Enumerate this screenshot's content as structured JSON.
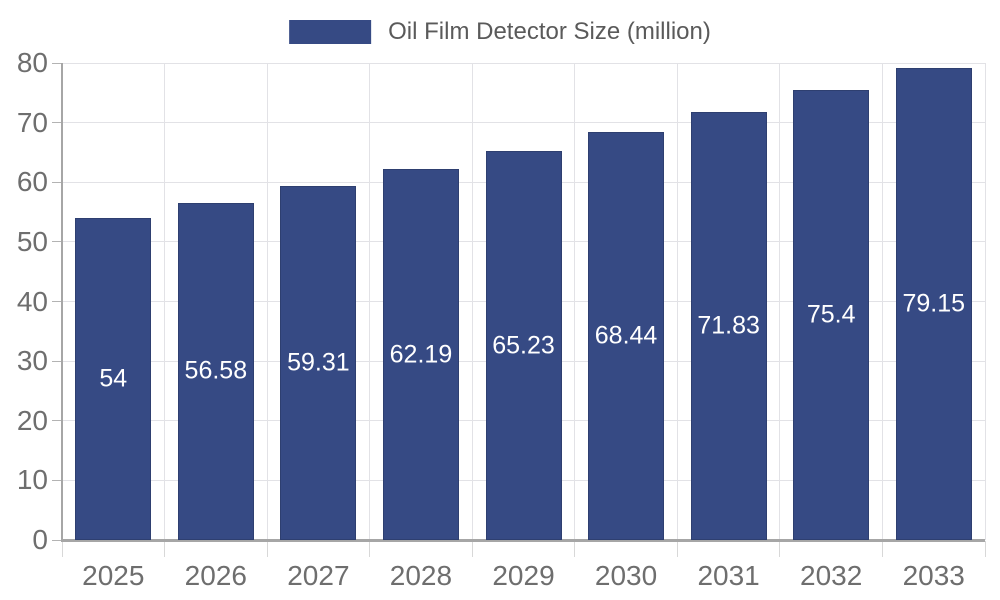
{
  "chart_data": {
    "type": "bar",
    "title": "Oil Film Detector Size (million)",
    "legend_position": "top",
    "categories": [
      "2025",
      "2026",
      "2027",
      "2028",
      "2029",
      "2030",
      "2031",
      "2032",
      "2033"
    ],
    "series": [
      {
        "name": "Oil Film Detector Size (million)",
        "values": [
          54,
          56.58,
          59.31,
          62.19,
          65.23,
          68.44,
          71.83,
          75.4,
          79.15
        ]
      }
    ],
    "data_labels": [
      "54",
      "56.58",
      "59.31",
      "62.19",
      "65.23",
      "68.44",
      "71.83",
      "75.4",
      "79.15"
    ],
    "xlabel": "",
    "ylabel": "",
    "ylim": [
      0,
      80
    ],
    "ytick_step": 10,
    "yticks": [
      0,
      10,
      20,
      30,
      40,
      50,
      60,
      70,
      80
    ],
    "grid": true,
    "colors": {
      "bar_fill": "#364a84",
      "bar_border": "#2e3f70",
      "bar_label": "#ffffff",
      "gridline": "#e2e2e6",
      "axis_line": "#a6a6a6",
      "y_tick_mark": "#b3b3b3",
      "x_tick_mark": "#d8d8d8",
      "tick_label": "#6e6e6e",
      "legend_text": "#5a5a5a",
      "background": "#ffffff"
    }
  }
}
